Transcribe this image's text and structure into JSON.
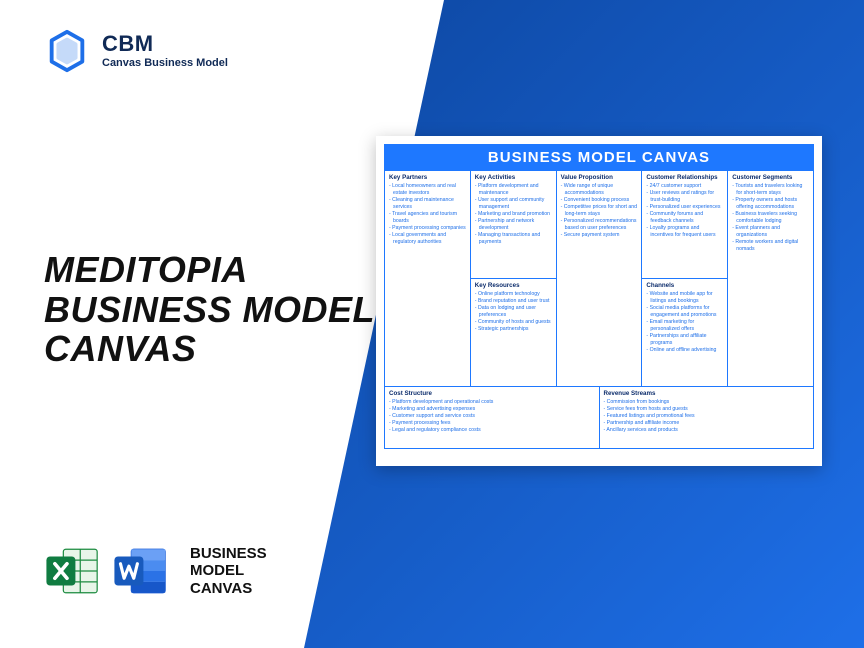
{
  "brand": {
    "abbr": "CBM",
    "full": "Canvas Business Model"
  },
  "headline": {
    "l1": "MEDITOPIA",
    "l2": "BUSINESS MODEL",
    "l3": "CANVAS"
  },
  "bmc_label": {
    "l1": "BUSINESS",
    "l2": "MODEL",
    "l3": "CANVAS"
  },
  "accent_color": "#1e6fe8",
  "canvas": {
    "title": "BUSINESS MODEL CANVAS",
    "blocks": {
      "key_partners": {
        "h": "Key Partners",
        "items": [
          "Local homeowners and real estate investors",
          "Cleaning and maintenance services",
          "Travel agencies and tourism boards",
          "Payment processing companies",
          "Local governments and regulatory authorities"
        ]
      },
      "key_activities": {
        "h": "Key Activities",
        "items": [
          "Platform development and maintenance",
          "User support and community management",
          "Marketing and brand promotion",
          "Partnership and network development",
          "Managing transactions and payments"
        ]
      },
      "value_proposition": {
        "h": "Value Proposition",
        "items": [
          "Wide range of unique accommodations",
          "Convenient booking process",
          "Competitive prices for short and long-term stays",
          "Personalized recommendations based on user preferences",
          "Secure payment system"
        ]
      },
      "customer_relationships": {
        "h": "Customer Relationships",
        "items": [
          "24/7 customer support",
          "User reviews and ratings for trust-building",
          "Personalized user experiences",
          "Community forums and feedback channels",
          "Loyalty programs and incentives for frequent users"
        ]
      },
      "customer_segments": {
        "h": "Customer Segments",
        "items": [
          "Tourists and travelers looking for short-term stays",
          "Property owners and hosts offering accommodations",
          "Business travelers seeking comfortable lodging",
          "Event planners and organizations",
          "Remote workers and digital nomads"
        ]
      },
      "key_resources": {
        "h": "Key Resources",
        "items": [
          "Online platform technology",
          "Brand reputation and user trust",
          "Data on lodging and user preferences",
          "Community of hosts and guests",
          "Strategic partnerships"
        ]
      },
      "channels": {
        "h": "Channels",
        "items": [
          "Website and mobile app for listings and bookings",
          "Social media platforms for engagement and promotions",
          "Email marketing for personalized offers",
          "Partnerships and affiliate programs",
          "Online and offline advertising"
        ]
      },
      "cost_structure": {
        "h": "Cost Structure",
        "items": [
          "Platform development and operational costs",
          "Marketing and advertising expenses",
          "Customer support and service costs",
          "Payment processing fees",
          "Legal and regulatory compliance costs"
        ]
      },
      "revenue_streams": {
        "h": "Revenue Streams",
        "items": [
          "Commission from bookings",
          "Service fees from hosts and guests",
          "Featured listings and promotional fees",
          "Partnership and affiliate income",
          "Ancillary services and products"
        ]
      }
    }
  }
}
